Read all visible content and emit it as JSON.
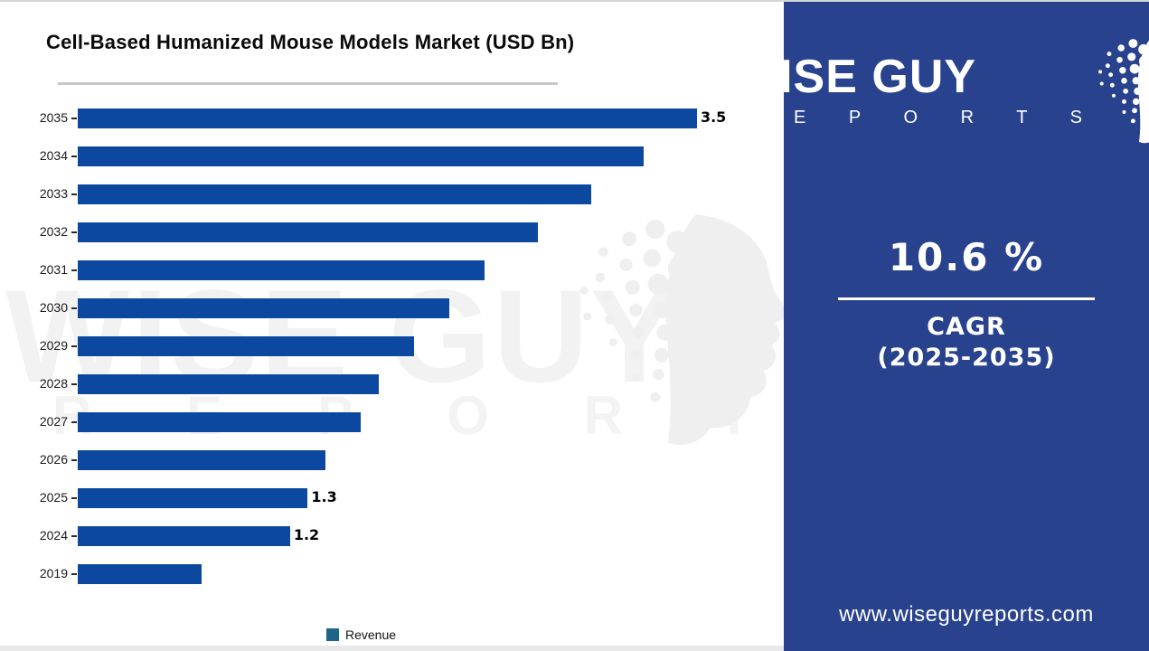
{
  "chart_data": {
    "type": "bar",
    "orientation": "horizontal",
    "title": "Cell-Based Humanized Mouse Models Market (USD Bn)",
    "categories": [
      "2035",
      "2034",
      "2033",
      "2032",
      "2031",
      "2030",
      "2029",
      "2028",
      "2027",
      "2026",
      "2025",
      "2024",
      "2019"
    ],
    "series": [
      {
        "name": "Revenue",
        "values": [
          3.5,
          3.2,
          2.9,
          2.6,
          2.3,
          2.1,
          1.9,
          1.7,
          1.6,
          1.4,
          1.3,
          1.2,
          0.7
        ]
      }
    ],
    "value_labels": {
      "2035": "3.5",
      "2025": "1.3",
      "2024": "1.2"
    },
    "xlabel": "",
    "ylabel": "",
    "xlim": [
      0,
      3.95
    ],
    "grid": false,
    "bar_color": "#0d48a0",
    "legend": {
      "label": "Revenue",
      "position": "bottom",
      "swatch_color": "#1d6488"
    }
  },
  "watermark": {
    "line1": "WISE GUY",
    "line2": "R E P O R T S"
  },
  "sidebar": {
    "background_color": "#28428e",
    "logo": {
      "title": "WISE GUY",
      "subtitle": "R E P O R T S"
    },
    "cagr": {
      "value": "10.6 %",
      "label": "CAGR",
      "period": "(2025-2035)"
    },
    "website": "www.wiseguyreports.com"
  }
}
